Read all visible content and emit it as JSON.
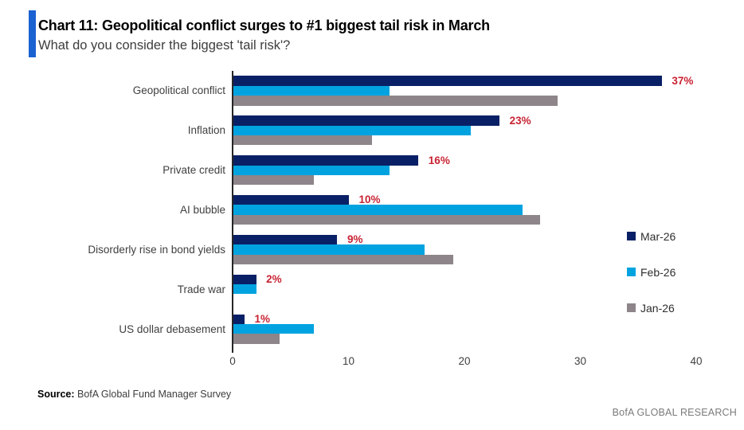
{
  "header": {
    "title": "Chart 11: Geopolitical conflict surges to #1 biggest tail risk in March",
    "subtitle": "What do you consider the biggest 'tail risk'?",
    "accent_color": "#1a61d2"
  },
  "chart_data": {
    "type": "bar",
    "orientation": "horizontal",
    "title": "What do you consider the biggest 'tail risk'?",
    "categories": [
      "Geopolitical conflict",
      "Inflation",
      "Private credit",
      "AI bubble",
      "Disorderly rise in bond yields",
      "Trade war",
      "US dollar debasement"
    ],
    "series": [
      {
        "name": "Mar-26",
        "color": "#0a2066",
        "values": [
          37,
          23,
          16,
          10,
          9,
          2,
          1
        ]
      },
      {
        "name": "Feb-26",
        "color": "#00a3e0",
        "values": [
          13.5,
          20.5,
          13.5,
          25,
          16.5,
          2,
          7
        ]
      },
      {
        "name": "Jan-26",
        "color": "#8d8589",
        "values": [
          28,
          12,
          7,
          26.5,
          19,
          0,
          4
        ]
      }
    ],
    "data_labels": {
      "series": "Mar-26",
      "values": [
        "37%",
        "23%",
        "16%",
        "10%",
        "9%",
        "2%",
        "1%"
      ],
      "color": "#c82333"
    },
    "xlim": [
      0,
      40
    ],
    "x_ticks": [
      "0",
      "10",
      "20",
      "30",
      "40"
    ],
    "grid": false,
    "legend_position": "right"
  },
  "footer": {
    "source_label": "Source:",
    "source_text": " BofA Global Fund Manager Survey",
    "brand": "BofA GLOBAL RESEARCH"
  }
}
